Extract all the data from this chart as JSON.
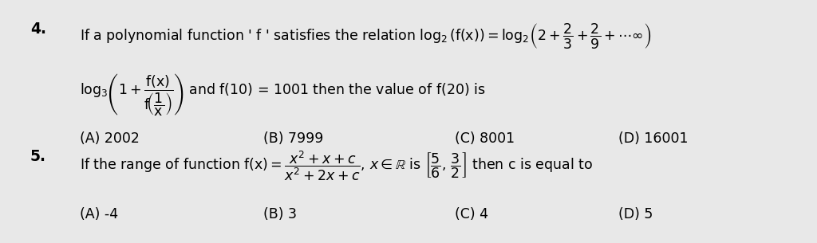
{
  "background_color": "#e8e8e8",
  "text_color": "#000000",
  "figsize": [
    10.24,
    3.05
  ],
  "dpi": 100,
  "q4_number": "4.",
  "q4_options": [
    "(A) 2002",
    "(B) 7999",
    "(C) 8001",
    "(D) 16001"
  ],
  "q5_number": "5.",
  "q5_options": [
    "(A) -4",
    "(B) 3",
    "(C) 4",
    "(D) 5"
  ],
  "fontsize_main": 12.5,
  "fontsize_number": 13.5
}
